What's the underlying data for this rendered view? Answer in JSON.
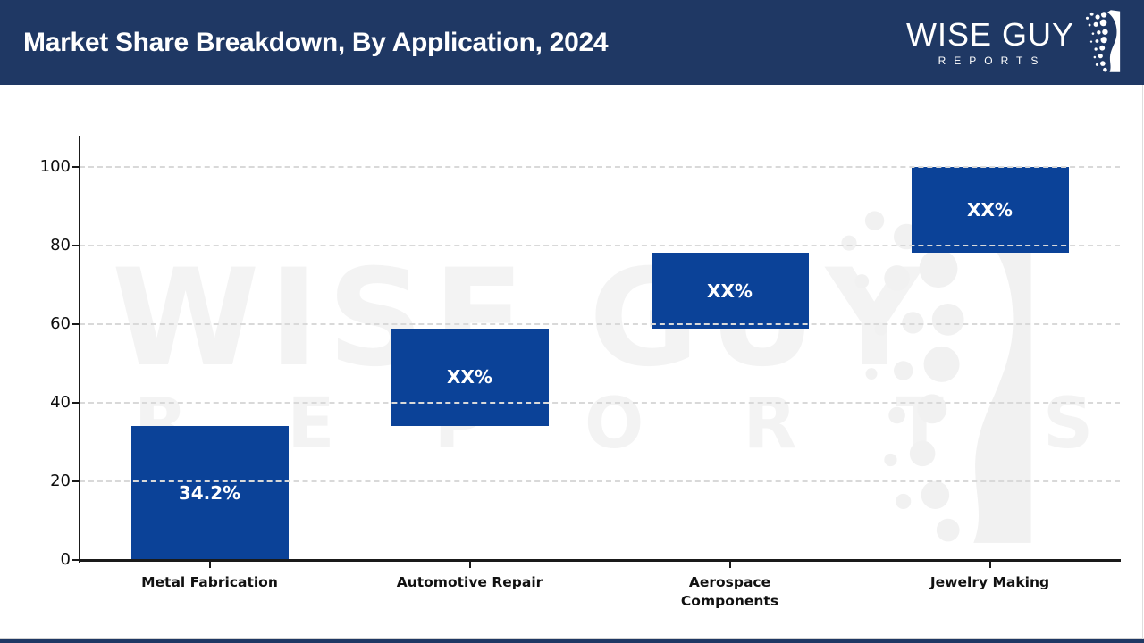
{
  "header": {
    "title": "Market Share Breakdown, By Application, 2024",
    "logo": {
      "line1": "WISE GUY",
      "line2": "REPORTS"
    }
  },
  "watermark": {
    "line1": "WISE GUY",
    "line2": "R E P O R T S"
  },
  "colors": {
    "header_bg": "#1f3864",
    "footer_bg": "#1f3864",
    "bar": "#0b4298",
    "grid": "#d9d9d9",
    "axis": "#1a1a1a",
    "bar_label": "#ffffff",
    "watermark": "#f3f3f3"
  },
  "chart_data": {
    "type": "bar",
    "subtype": "waterfall",
    "title": "Market Share Breakdown, By Application, 2024",
    "categories": [
      "Metal Fabrication",
      "Automotive Repair",
      "Aerospace Components",
      "Jewelry Making"
    ],
    "category_lines": [
      [
        "Metal Fabrication"
      ],
      [
        "Automotive Repair"
      ],
      [
        "Aerospace",
        "Components"
      ],
      [
        "Jewelry Making"
      ]
    ],
    "segments": [
      {
        "category": "Metal Fabrication",
        "start": 0,
        "end": 34.2,
        "label": "34.2%"
      },
      {
        "category": "Automotive Repair",
        "start": 34.2,
        "end": 58.8,
        "label": "XX%"
      },
      {
        "category": "Aerospace Components",
        "start": 58.8,
        "end": 78.2,
        "label": "XX%"
      },
      {
        "category": "Jewelry Making",
        "start": 78.2,
        "end": 100,
        "label": "XX%"
      }
    ],
    "y_ticks": [
      0,
      20,
      40,
      60,
      80,
      100
    ],
    "ylim": [
      0,
      107
    ],
    "xlabel": "",
    "ylabel": "",
    "grid": "horizontal-dashed",
    "legend": "none"
  }
}
